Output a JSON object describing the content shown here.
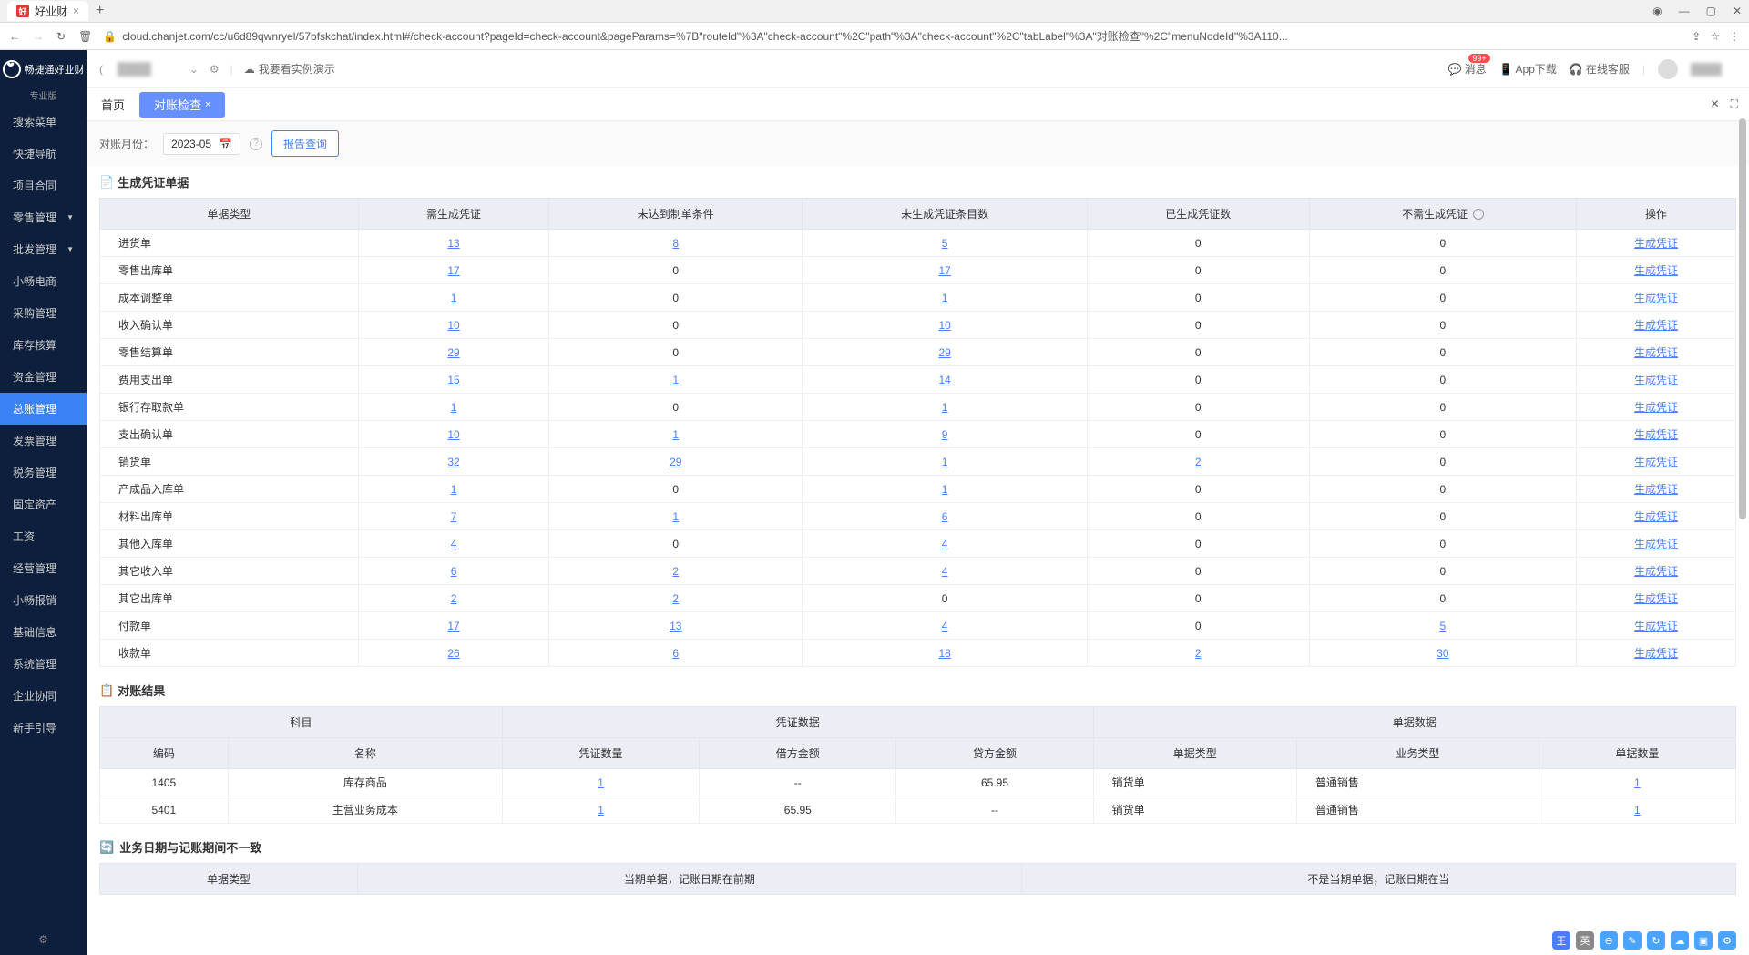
{
  "browser": {
    "tab_title": "好业财",
    "url": "cloud.chanjet.com/cc/u6d89qwnryel/57bfskchat/index.html#/check-account?pageId=check-account&pageParams=%7B\"routeId\"%3A\"check-account\"%2C\"path\"%3A\"check-account\"%2C\"tabLabel\"%3A\"对账检查\"%2C\"menuNodeId\"%3A110..."
  },
  "brand": {
    "name": "畅捷通好业财",
    "edition": "专业版"
  },
  "sidebar": {
    "items": [
      {
        "label": "搜索菜单",
        "chev": false
      },
      {
        "label": "快捷导航",
        "chev": false
      },
      {
        "label": "项目合同",
        "chev": false
      },
      {
        "label": "零售管理",
        "chev": true
      },
      {
        "label": "批发管理",
        "chev": true
      },
      {
        "label": "小畅电商",
        "chev": false
      },
      {
        "label": "采购管理",
        "chev": false
      },
      {
        "label": "库存核算",
        "chev": false
      },
      {
        "label": "资金管理",
        "chev": false
      },
      {
        "label": "总账管理",
        "chev": false,
        "active": true
      },
      {
        "label": "发票管理",
        "chev": false
      },
      {
        "label": "税务管理",
        "chev": false
      },
      {
        "label": "固定资产",
        "chev": false
      },
      {
        "label": "工资",
        "chev": false
      },
      {
        "label": "经营管理",
        "chev": false
      },
      {
        "label": "小畅报销",
        "chev": false
      },
      {
        "label": "基础信息",
        "chev": false
      },
      {
        "label": "系统管理",
        "chev": false
      },
      {
        "label": "企业协同",
        "chev": false
      },
      {
        "label": "新手引导",
        "chev": false
      }
    ]
  },
  "topbar": {
    "org": "████",
    "demo_link": "我要看实例演示",
    "msg": "消息",
    "msg_badge": "99+",
    "app": "App下载",
    "service": "在线客服",
    "user": "████"
  },
  "tabs": {
    "home": "首页",
    "active": "对账检查"
  },
  "toolbar": {
    "month_label": "对账月份：",
    "month_value": "2023-05",
    "query_btn": "报告查询"
  },
  "section1": {
    "title": "生成凭证单据",
    "headers": [
      "单据类型",
      "需生成凭证",
      "未达到制单条件",
      "未生成凭证条目数",
      "已生成凭证数",
      "不需生成凭证",
      "操作"
    ],
    "info_col": 5,
    "action_label": "生成凭证",
    "rows": [
      {
        "name": "进货单",
        "a": "13",
        "b": "8",
        "c": "5",
        "d": "0",
        "e": "0"
      },
      {
        "name": "零售出库单",
        "a": "17",
        "b": "0",
        "c": "17",
        "d": "0",
        "e": "0"
      },
      {
        "name": "成本调整单",
        "a": "1",
        "b": "0",
        "c": "1",
        "d": "0",
        "e": "0"
      },
      {
        "name": "收入确认单",
        "a": "10",
        "b": "0",
        "c": "10",
        "d": "0",
        "e": "0"
      },
      {
        "name": "零售结算单",
        "a": "29",
        "b": "0",
        "c": "29",
        "d": "0",
        "e": "0"
      },
      {
        "name": "费用支出单",
        "a": "15",
        "b": "1",
        "c": "14",
        "d": "0",
        "e": "0"
      },
      {
        "name": "银行存取款单",
        "a": "1",
        "b": "0",
        "c": "1",
        "d": "0",
        "e": "0"
      },
      {
        "name": "支出确认单",
        "a": "10",
        "b": "1",
        "c": "9",
        "d": "0",
        "e": "0"
      },
      {
        "name": "销货单",
        "a": "32",
        "b": "29",
        "c": "1",
        "d": "2",
        "e": "0"
      },
      {
        "name": "产成品入库单",
        "a": "1",
        "b": "0",
        "c": "1",
        "d": "0",
        "e": "0"
      },
      {
        "name": "材料出库单",
        "a": "7",
        "b": "1",
        "c": "6",
        "d": "0",
        "e": "0"
      },
      {
        "name": "其他入库单",
        "a": "4",
        "b": "0",
        "c": "4",
        "d": "0",
        "e": "0"
      },
      {
        "name": "其它收入单",
        "a": "6",
        "b": "2",
        "c": "4",
        "d": "0",
        "e": "0"
      },
      {
        "name": "其它出库单",
        "a": "2",
        "b": "2",
        "c": "0",
        "d": "0",
        "e": "0"
      },
      {
        "name": "付款单",
        "a": "17",
        "b": "13",
        "c": "4",
        "d": "0",
        "e": "5"
      },
      {
        "name": "收款单",
        "a": "26",
        "b": "6",
        "c": "18",
        "d": "2",
        "e": "30"
      }
    ]
  },
  "section2": {
    "title": "对账结果",
    "header_row1": [
      "科目",
      "凭证数据",
      "",
      "",
      "单据数据",
      "",
      ""
    ],
    "header_row2": [
      "编码",
      "名称",
      "凭证数量",
      "借方金额",
      "贷方金额",
      "单据类型",
      "业务类型",
      "单据数量"
    ],
    "rows": [
      {
        "code": "1405",
        "name": "库存商品",
        "qty": "1",
        "debit": "--",
        "credit": "65.95",
        "doc": "销货单",
        "biz": "普通销售",
        "dqty": "1"
      },
      {
        "code": "5401",
        "name": "主营业务成本",
        "qty": "1",
        "debit": "65.95",
        "credit": "--",
        "doc": "销货单",
        "biz": "普通销售",
        "dqty": "1"
      }
    ]
  },
  "section3": {
    "title": "业务日期与记账期间不一致",
    "headers": [
      "单据类型",
      "当期单据，记账日期在前期",
      "不是当期单据，记账日期在当"
    ]
  }
}
